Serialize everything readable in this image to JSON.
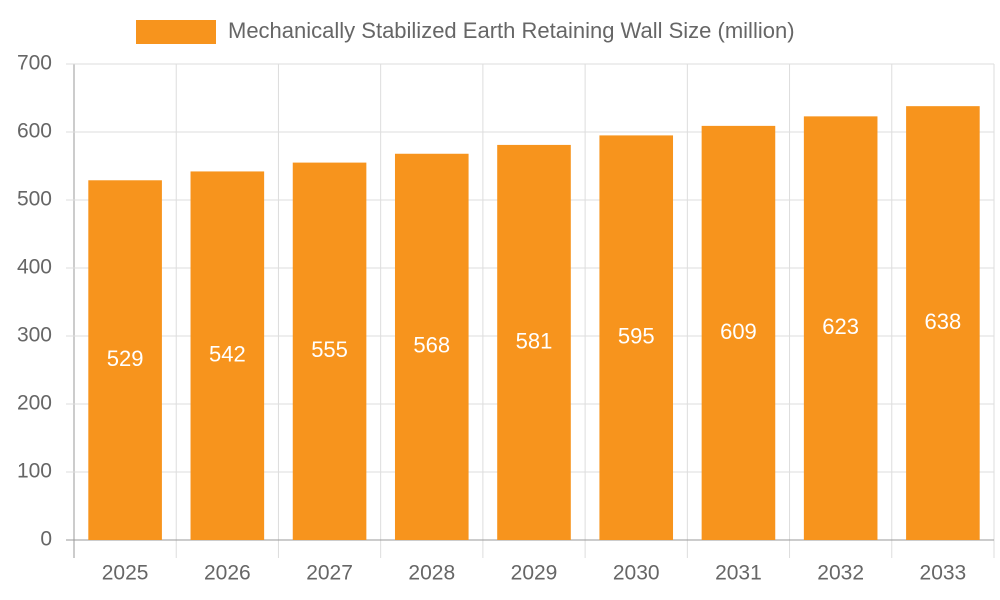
{
  "chart_data": {
    "type": "bar",
    "categories": [
      "2025",
      "2026",
      "2027",
      "2028",
      "2029",
      "2030",
      "2031",
      "2032",
      "2033"
    ],
    "series": [
      {
        "name": "Mechanically Stabilized Earth Retaining Wall Size (million)",
        "color": "#f7941d",
        "values": [
          529,
          542,
          555,
          568,
          581,
          595,
          609,
          623,
          638
        ]
      }
    ],
    "ylim": [
      0,
      700
    ],
    "yticks": [
      0,
      100,
      200,
      300,
      400,
      500,
      600,
      700
    ],
    "grid": true,
    "legend": "top"
  }
}
